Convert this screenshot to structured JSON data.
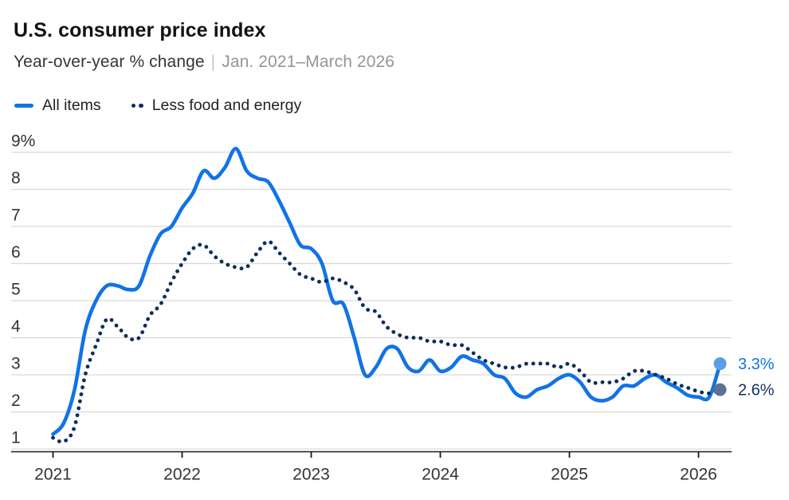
{
  "header": {
    "title": "U.S. consumer price index",
    "subtitle_measure": "Year-over-year % change",
    "subtitle_divider": "|",
    "subtitle_range": "Jan. 2021–March 2026"
  },
  "chart_data": {
    "type": "line",
    "title": "U.S. consumer price index",
    "subtitle": "Year-over-year % change | Jan. 2021–March 2026",
    "x_unit": "month",
    "x_start": "2021-01",
    "x_end": "2026-03",
    "x_tick_labels": [
      "2021",
      "2022",
      "2023",
      "2024",
      "2025",
      "2026"
    ],
    "y_ticks": [
      1,
      2,
      3,
      4,
      5,
      6,
      7,
      8,
      9
    ],
    "y_top_label": "9%",
    "ylim": [
      1,
      9
    ],
    "grid": "horizontal",
    "legend_position": "top-left",
    "colors": {
      "grid": "#d9d9d9",
      "axis": "#1a1a1a",
      "tick_text": "#333333",
      "title_text": "#121212",
      "subtitle_text": "#363636",
      "subtitle_muted": "#969696"
    },
    "series": [
      {
        "name": "All items",
        "style": "solid",
        "color": "#1173e6",
        "end_dot_color": "#5d9ce6",
        "end_label": "3.3%",
        "end_label_color": "#1173e6",
        "values": [
          1.4,
          1.7,
          2.6,
          4.2,
          5.0,
          5.4,
          5.4,
          5.3,
          5.4,
          6.2,
          6.8,
          7.0,
          7.5,
          7.9,
          8.5,
          8.3,
          8.6,
          9.1,
          8.5,
          8.3,
          8.2,
          7.7,
          7.1,
          6.5,
          6.4,
          6.0,
          5.0,
          4.9,
          4.0,
          3.0,
          3.2,
          3.7,
          3.7,
          3.2,
          3.1,
          3.4,
          3.1,
          3.2,
          3.5,
          3.4,
          3.3,
          3.0,
          2.9,
          2.5,
          2.4,
          2.6,
          2.7,
          2.9,
          3.0,
          2.8,
          2.4,
          2.3,
          2.4,
          2.7,
          2.7,
          2.9,
          3.0,
          2.8,
          2.65,
          2.45,
          2.4,
          2.4,
          3.3
        ]
      },
      {
        "name": "Less food and energy",
        "style": "dotted",
        "color": "#0d2e5c",
        "end_dot_color": "#5b7293",
        "end_label": "2.6%",
        "end_label_color": "#12305e",
        "values": [
          1.3,
          1.2,
          1.6,
          3.0,
          3.8,
          4.5,
          4.3,
          4.0,
          4.0,
          4.6,
          4.9,
          5.5,
          6.0,
          6.4,
          6.5,
          6.2,
          6.0,
          5.9,
          5.9,
          6.3,
          6.6,
          6.3,
          6.0,
          5.7,
          5.6,
          5.5,
          5.6,
          5.5,
          5.3,
          4.8,
          4.7,
          4.3,
          4.1,
          4.0,
          4.0,
          3.9,
          3.9,
          3.8,
          3.8,
          3.6,
          3.4,
          3.3,
          3.2,
          3.2,
          3.3,
          3.3,
          3.3,
          3.2,
          3.3,
          3.1,
          2.8,
          2.8,
          2.8,
          2.9,
          3.1,
          3.1,
          3.0,
          2.9,
          2.75,
          2.65,
          2.55,
          2.5,
          2.6
        ]
      }
    ]
  }
}
